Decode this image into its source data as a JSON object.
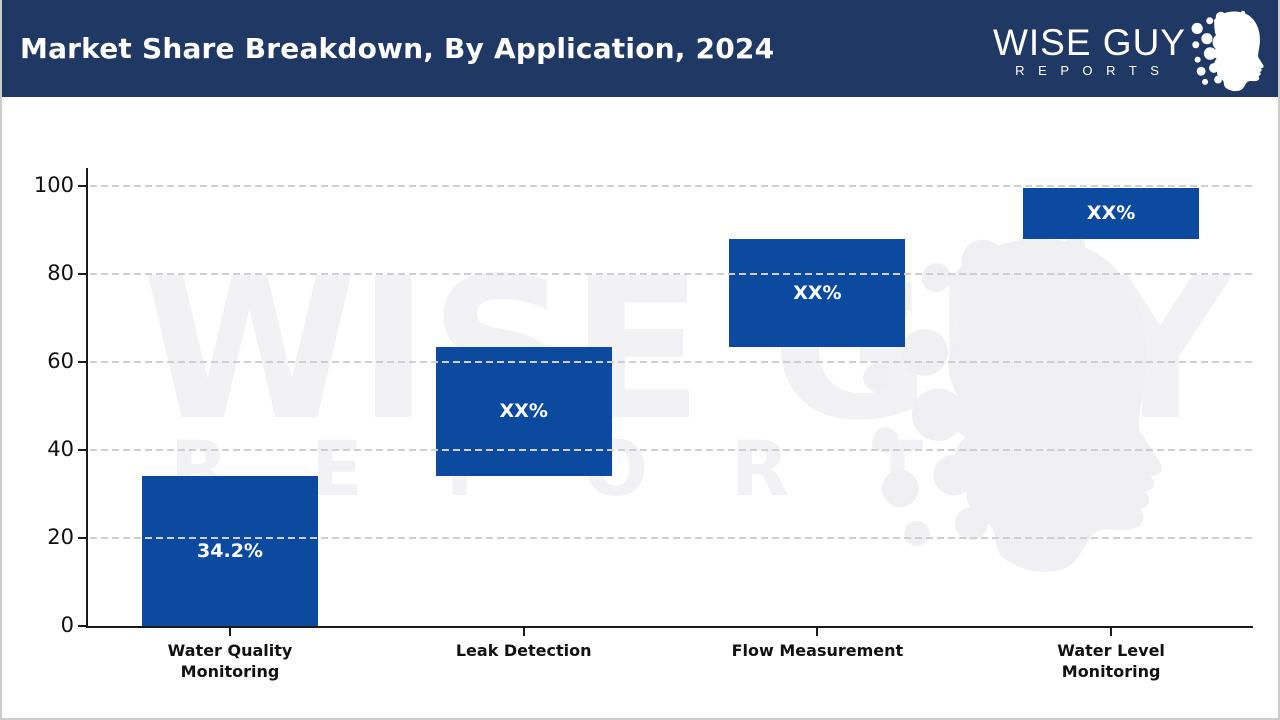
{
  "header": {
    "title": "Market Share Breakdown, By Application, 2024",
    "logo": {
      "line1": "WISE GUY",
      "line2": "R E P O R T S"
    }
  },
  "watermark": {
    "line1": "WISE GUY",
    "line2": "R E P O R T S"
  },
  "chart_data": {
    "type": "bar",
    "subtype": "waterfall-stacked-market-share",
    "title": "Market Share Breakdown, By Application, 2024",
    "categories": [
      "Water Quality\nMonitoring",
      "Leak Detection",
      "Flow Measurement",
      "Water Level\nMonitoring"
    ],
    "segments": [
      {
        "category": "Water Quality Monitoring",
        "start": 0,
        "end": 34.2,
        "label": "34.2%"
      },
      {
        "category": "Leak Detection",
        "start": 34.2,
        "end": 63.4,
        "label": "XX%"
      },
      {
        "category": "Flow Measurement",
        "start": 63.4,
        "end": 88.0,
        "label": "XX%"
      },
      {
        "category": "Water Level Monitoring",
        "start": 88.0,
        "end": 99.5,
        "label": "XX%"
      }
    ],
    "xlabel": "",
    "ylabel": "",
    "yticks": [
      0,
      20,
      40,
      60,
      80,
      100
    ],
    "ylim": [
      0,
      105
    ],
    "grid": "horizontal-dashed",
    "legend": "none",
    "bar_color": "#0c4aa0",
    "bar_label_color": "#ffffff",
    "axis_color": "#1a1a1a",
    "gridline_color": "#cfcfcf"
  },
  "colors": {
    "header_bg": "#1f3864",
    "page_border": "#cccccc",
    "watermark": "#f2f2f4"
  }
}
